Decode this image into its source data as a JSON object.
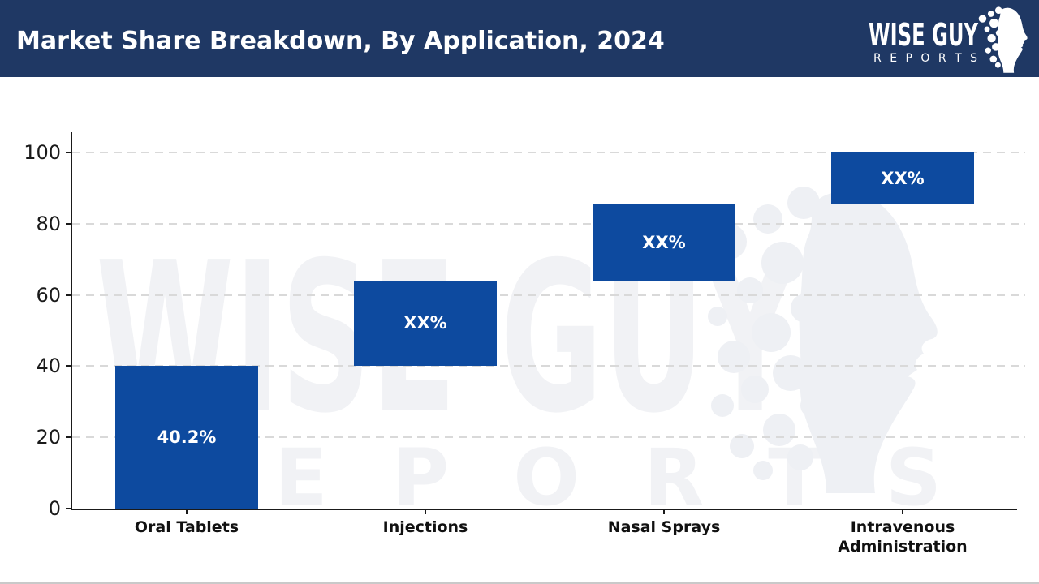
{
  "header": {
    "title": "Market Share Breakdown, By Application, 2024",
    "logo": {
      "name": "WISE GUY",
      "tagline": "R E P O R T S",
      "head_icon": "dotted-face-profile"
    }
  },
  "watermark": {
    "line1": "WISE GUY",
    "line2": "R E P O R T S",
    "head_icon": "dotted-face-profile"
  },
  "colors": {
    "header_bg": "#1f3864",
    "bar": "#0d4a9f",
    "bar_label": "#ffffff",
    "grid": "#d9d9d9",
    "axis": "#1a1a1a",
    "watermark": "#f1f2f5",
    "logo_text": "#ffffff"
  },
  "chart_data": {
    "type": "bar",
    "subtype": "waterfall",
    "title": "Market Share Breakdown, By Application, 2024",
    "categories": [
      "Oral Tablets",
      "Injections",
      "Nasal Sprays",
      "Intravenous Administration"
    ],
    "segments": [
      {
        "category": "Oral Tablets",
        "start": 0,
        "end": 40.2,
        "label": "40.2%"
      },
      {
        "category": "Injections",
        "start": 40.2,
        "end": 64.0,
        "label": "XX%"
      },
      {
        "category": "Nasal Sprays",
        "start": 64.0,
        "end": 85.5,
        "label": "XX%"
      },
      {
        "category": "Intravenous Administration",
        "start": 85.5,
        "end": 100,
        "label": "XX%"
      }
    ],
    "yticks": [
      0,
      20,
      40,
      60,
      80,
      100
    ],
    "ylim": [
      0,
      100
    ],
    "xlabel": "",
    "ylabel": "",
    "grid": "dashed-horizontal",
    "legend": "none"
  }
}
